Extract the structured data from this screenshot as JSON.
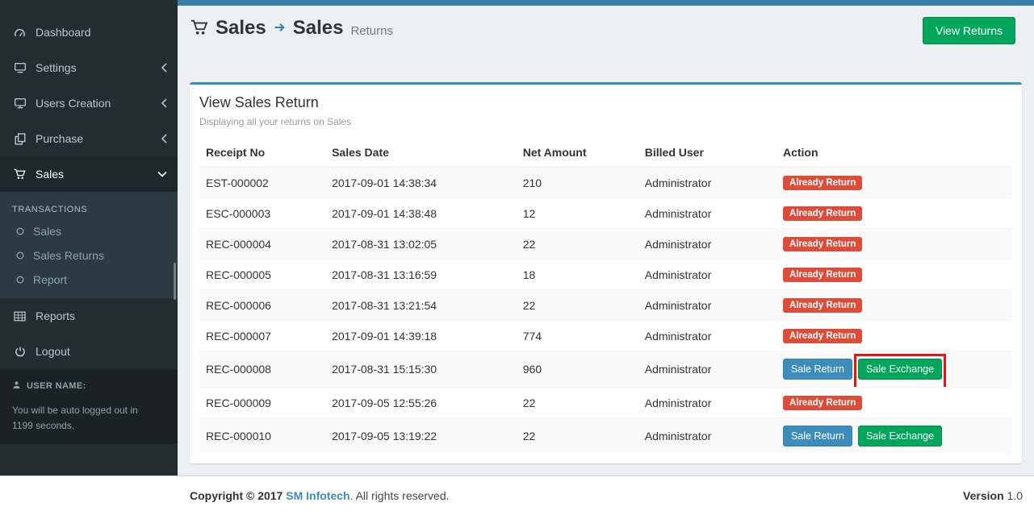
{
  "colors": {
    "accent_blue": "#3c8dbc",
    "success_green": "#00a65a",
    "danger_red": "#dd4b39",
    "annotation_red": "#ee1111",
    "sidebar_dark": "#222d32",
    "sidebar_submenu": "#2c3b41",
    "content_bg": "#ecf0f5"
  },
  "sidebar": {
    "items": [
      {
        "label": "Dashboard"
      },
      {
        "label": "Settings"
      },
      {
        "label": "Users Creation"
      },
      {
        "label": "Purchase"
      },
      {
        "label": "Sales"
      }
    ],
    "section_header": "TRANSACTIONS",
    "submenu": [
      {
        "label": "Sales"
      },
      {
        "label": "Sales Returns"
      },
      {
        "label": "Report"
      }
    ],
    "items_bottom": [
      {
        "label": "Reports"
      },
      {
        "label": "Logout"
      }
    ],
    "user_label": "USER NAME:",
    "auto_logout_notice": "You will be auto logged out in 1199 seconds."
  },
  "header": {
    "title_primary": "Sales",
    "title_secondary": "Sales",
    "title_suffix": "Returns",
    "view_returns_button": "View Returns"
  },
  "panel": {
    "title": "View Sales Return",
    "subtitle": "Displaying all your returns on Sales",
    "table": {
      "headers": [
        "Receipt No",
        "Sales Date",
        "Net Amount",
        "Billed User",
        "Action"
      ],
      "rows": [
        {
          "receipt_no": "EST-000002",
          "sales_date": "2017-09-01 14:38:34",
          "net_amount": "210",
          "billed_user": "Administrator",
          "actions": [
            "already_return"
          ]
        },
        {
          "receipt_no": "ESC-000003",
          "sales_date": "2017-09-01 14:38:48",
          "net_amount": "12",
          "billed_user": "Administrator",
          "actions": [
            "already_return"
          ]
        },
        {
          "receipt_no": "REC-000004",
          "sales_date": "2017-08-31 13:02:05",
          "net_amount": "22",
          "billed_user": "Administrator",
          "actions": [
            "already_return"
          ]
        },
        {
          "receipt_no": "REC-000005",
          "sales_date": "2017-08-31 13:16:59",
          "net_amount": "18",
          "billed_user": "Administrator",
          "actions": [
            "already_return"
          ]
        },
        {
          "receipt_no": "REC-000006",
          "sales_date": "2017-08-31 13:21:54",
          "net_amount": "22",
          "billed_user": "Administrator",
          "actions": [
            "already_return"
          ]
        },
        {
          "receipt_no": "REC-000007",
          "sales_date": "2017-09-01 14:39:18",
          "net_amount": "774",
          "billed_user": "Administrator",
          "actions": [
            "already_return"
          ]
        },
        {
          "receipt_no": "REC-000008",
          "sales_date": "2017-08-31 15:15:30",
          "net_amount": "960",
          "billed_user": "Administrator",
          "actions": [
            "sale_return",
            "sale_exchange"
          ],
          "annotated": "sale_exchange"
        },
        {
          "receipt_no": "REC-000009",
          "sales_date": "2017-09-05 12:55:26",
          "net_amount": "22",
          "billed_user": "Administrator",
          "actions": [
            "already_return"
          ]
        },
        {
          "receipt_no": "REC-000010",
          "sales_date": "2017-09-05 13:19:22",
          "net_amount": "22",
          "billed_user": "Administrator",
          "actions": [
            "sale_return",
            "sale_exchange"
          ]
        }
      ]
    }
  },
  "action_labels": {
    "already_return": "Already Return",
    "sale_return": "Sale Return",
    "sale_exchange": "Sale Exchange"
  },
  "footer": {
    "copyright_prefix": "Copyright © 2017",
    "company": "SM Infotech",
    "copyright_suffix": ". All rights reserved.",
    "version_label": "Version",
    "version_value": "1.0"
  }
}
